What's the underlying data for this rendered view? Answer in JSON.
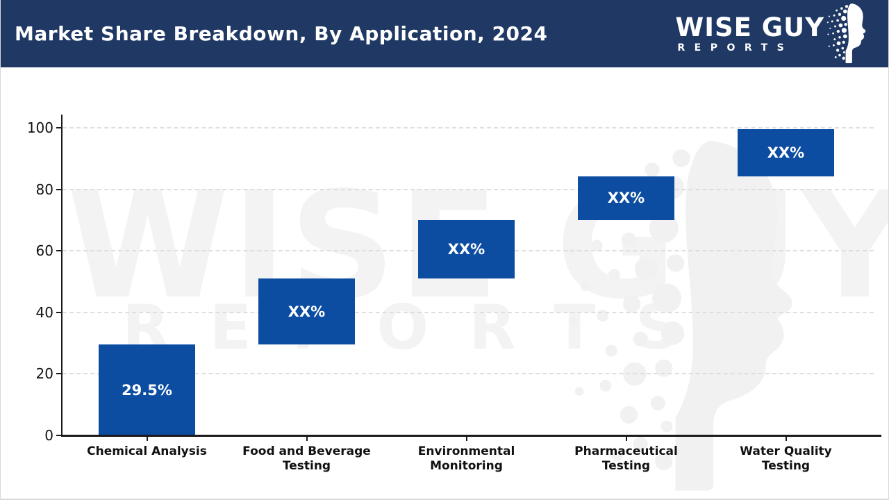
{
  "header": {
    "title": "Market Share Breakdown, By Application, 2024",
    "logo": {
      "line1": "WISE GUY",
      "line2": "REPORTS"
    }
  },
  "watermark": {
    "line1": "WISE GUY",
    "line2": "REPORTS"
  },
  "chart_data": {
    "type": "bar",
    "subtype": "floating-waterfall",
    "title": "Market Share Breakdown, By Application, 2024",
    "categories": [
      "Chemical Analysis",
      "Food and Beverage Testing",
      "Environmental Monitoring",
      "Pharmaceutical Testing",
      "Water Quality Testing"
    ],
    "bars": [
      {
        "category": "Chemical Analysis",
        "label_lines": [
          "Chemical Analysis"
        ],
        "start": 0,
        "end": 29.5,
        "label": "29.5%"
      },
      {
        "category": "Food and Beverage Testing",
        "label_lines": [
          "Food and Beverage",
          "Testing"
        ],
        "start": 29.5,
        "end": 51,
        "label": "XX%"
      },
      {
        "category": "Environmental Monitoring",
        "label_lines": [
          "Environmental",
          "Monitoring"
        ],
        "start": 51,
        "end": 70,
        "label": "XX%"
      },
      {
        "category": "Pharmaceutical Testing",
        "label_lines": [
          "Pharmaceutical",
          "Testing"
        ],
        "start": 70,
        "end": 84.3,
        "label": "XX%"
      },
      {
        "category": "Water Quality Testing",
        "label_lines": [
          "Water Quality",
          "Testing"
        ],
        "start": 84.3,
        "end": 99.6,
        "label": "XX%"
      }
    ],
    "yticks": [
      0,
      20,
      40,
      60,
      80,
      100
    ],
    "ylim": [
      0,
      104
    ],
    "xlabel": "",
    "ylabel": "",
    "bar_color": "#0c4da2",
    "header_color": "#1f3864",
    "grid": "horizontal-dashed",
    "legend": "none"
  }
}
